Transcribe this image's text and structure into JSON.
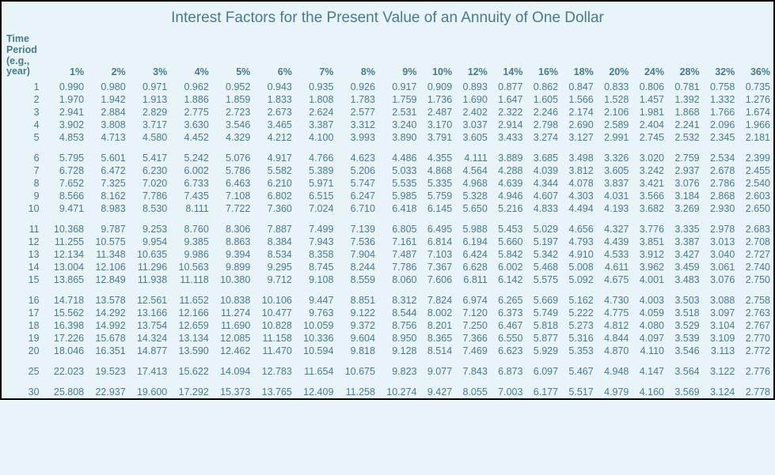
{
  "title": "Interest Factors for the Present Value of an Annuity of One Dollar",
  "row_header_lines": [
    "Time",
    "Period",
    "(e.g.,",
    "year)"
  ],
  "rates": [
    "1%",
    "2%",
    "3%",
    "4%",
    "5%",
    "6%",
    "7%",
    "8%",
    "9%",
    "10%",
    "12%",
    "14%",
    "16%",
    "18%",
    "20%",
    "24%",
    "28%",
    "32%",
    "36%"
  ],
  "groups": [
    {
      "rows": [
        {
          "p": "1",
          "v": [
            "0.990",
            "0.980",
            "0.971",
            "0.962",
            "0.952",
            "0.943",
            "0.935",
            "0.926",
            "0.917",
            "0.909",
            "0.893",
            "0.877",
            "0.862",
            "0.847",
            "0.833",
            "0.806",
            "0.781",
            "0.758",
            "0.735"
          ]
        },
        {
          "p": "2",
          "v": [
            "1.970",
            "1.942",
            "1.913",
            "1.886",
            "1.859",
            "1.833",
            "1.808",
            "1.783",
            "1.759",
            "1.736",
            "1.690",
            "1.647",
            "1.605",
            "1.566",
            "1.528",
            "1.457",
            "1.392",
            "1.332",
            "1.276"
          ]
        },
        {
          "p": "3",
          "v": [
            "2.941",
            "2.884",
            "2.829",
            "2.775",
            "2.723",
            "2.673",
            "2.624",
            "2.577",
            "2.531",
            "2.487",
            "2.402",
            "2.322",
            "2.246",
            "2.174",
            "2.106",
            "1.981",
            "1.868",
            "1.766",
            "1.674"
          ]
        },
        {
          "p": "4",
          "v": [
            "3.902",
            "3.808",
            "3.717",
            "3.630",
            "3.546",
            "3.465",
            "3.387",
            "3.312",
            "3.240",
            "3.170",
            "3.037",
            "2.914",
            "2.798",
            "2.690",
            "2.589",
            "2.404",
            "2.241",
            "2.096",
            "1.966"
          ]
        },
        {
          "p": "5",
          "v": [
            "4.853",
            "4.713",
            "4.580",
            "4.452",
            "4.329",
            "4.212",
            "4.100",
            "3.993",
            "3.890",
            "3.791",
            "3.605",
            "3.433",
            "3.274",
            "3.127",
            "2.991",
            "2.745",
            "2.532",
            "2.345",
            "2.181"
          ]
        }
      ]
    },
    {
      "rows": [
        {
          "p": "6",
          "v": [
            "5.795",
            "5.601",
            "5.417",
            "5.242",
            "5.076",
            "4.917",
            "4.766",
            "4.623",
            "4.486",
            "4.355",
            "4.111",
            "3.889",
            "3.685",
            "3.498",
            "3.326",
            "3.020",
            "2.759",
            "2.534",
            "2.399"
          ]
        },
        {
          "p": "7",
          "v": [
            "6.728",
            "6.472",
            "6.230",
            "6.002",
            "5.786",
            "5.582",
            "5.389",
            "5.206",
            "5.033",
            "4.868",
            "4.564",
            "4.288",
            "4.039",
            "3.812",
            "3.605",
            "3.242",
            "2.937",
            "2.678",
            "2.455"
          ]
        },
        {
          "p": "8",
          "v": [
            "7.652",
            "7.325",
            "7.020",
            "6.733",
            "6.463",
            "6.210",
            "5.971",
            "5.747",
            "5.535",
            "5.335",
            "4.968",
            "4.639",
            "4.344",
            "4.078",
            "3.837",
            "3.421",
            "3.076",
            "2.786",
            "2.540"
          ]
        },
        {
          "p": "9",
          "v": [
            "8.566",
            "8.162",
            "7.786",
            "7.435",
            "7.108",
            "6.802",
            "6.515",
            "6.247",
            "5.985",
            "5.759",
            "5.328",
            "4.946",
            "4.607",
            "4.303",
            "4.031",
            "3.566",
            "3.184",
            "2.868",
            "2.603"
          ]
        },
        {
          "p": "10",
          "v": [
            "9.471",
            "8.983",
            "8.530",
            "8.111",
            "7.722",
            "7.360",
            "7.024",
            "6.710",
            "6.418",
            "6.145",
            "5.650",
            "5.216",
            "4.833",
            "4.494",
            "4.193",
            "3.682",
            "3.269",
            "2.930",
            "2.650"
          ]
        }
      ]
    },
    {
      "rows": [
        {
          "p": "11",
          "v": [
            "10.368",
            "9.787",
            "9.253",
            "8.760",
            "8.306",
            "7.887",
            "7.499",
            "7.139",
            "6.805",
            "6.495",
            "5.988",
            "5.453",
            "5.029",
            "4.656",
            "4.327",
            "3.776",
            "3.335",
            "2.978",
            "2.683"
          ]
        },
        {
          "p": "12",
          "v": [
            "11.255",
            "10.575",
            "9.954",
            "9.385",
            "8.863",
            "8.384",
            "7.943",
            "7.536",
            "7.161",
            "6.814",
            "6.194",
            "5.660",
            "5.197",
            "4.793",
            "4.439",
            "3.851",
            "3.387",
            "3.013",
            "2.708"
          ]
        },
        {
          "p": "13",
          "v": [
            "12.134",
            "11.348",
            "10.635",
            "9.986",
            "9.394",
            "8.534",
            "8.358",
            "7.904",
            "7.487",
            "7.103",
            "6.424",
            "5.842",
            "5.342",
            "4.910",
            "4.533",
            "3.912",
            "3.427",
            "3.040",
            "2.727"
          ]
        },
        {
          "p": "14",
          "v": [
            "13.004",
            "12.106",
            "11.296",
            "10.563",
            "9.899",
            "9.295",
            "8.745",
            "8.244",
            "7.786",
            "7.367",
            "6.628",
            "6.002",
            "5.468",
            "5.008",
            "4.611",
            "3.962",
            "3.459",
            "3.061",
            "2.740"
          ]
        },
        {
          "p": "15",
          "v": [
            "13.865",
            "12.849",
            "11.938",
            "11.118",
            "10.380",
            "9.712",
            "9.108",
            "8.559",
            "8.060",
            "7.606",
            "6.811",
            "6.142",
            "5.575",
            "5.092",
            "4.675",
            "4.001",
            "3.483",
            "3.076",
            "2.750"
          ]
        }
      ]
    },
    {
      "rows": [
        {
          "p": "16",
          "v": [
            "14.718",
            "13.578",
            "12.561",
            "11.652",
            "10.838",
            "10.106",
            "9.447",
            "8.851",
            "8.312",
            "7.824",
            "6.974",
            "6.265",
            "5.669",
            "5.162",
            "4.730",
            "4.003",
            "3.503",
            "3.088",
            "2.758"
          ]
        },
        {
          "p": "17",
          "v": [
            "15.562",
            "14.292",
            "13.166",
            "12.166",
            "11.274",
            "10.477",
            "9.763",
            "9.122",
            "8.544",
            "8.002",
            "7.120",
            "6.373",
            "5.749",
            "5.222",
            "4.775",
            "4.059",
            "3.518",
            "3.097",
            "2.763"
          ]
        },
        {
          "p": "18",
          "v": [
            "16.398",
            "14.992",
            "13.754",
            "12.659",
            "11.690",
            "10.828",
            "10.059",
            "9.372",
            "8.756",
            "8.201",
            "7.250",
            "6.467",
            "5.818",
            "5.273",
            "4.812",
            "4.080",
            "3.529",
            "3.104",
            "2.767"
          ]
        },
        {
          "p": "19",
          "v": [
            "17.226",
            "15.678",
            "14.324",
            "13.134",
            "12.085",
            "11.158",
            "10.336",
            "9.604",
            "8.950",
            "8.365",
            "7.366",
            "6.550",
            "5.877",
            "5.316",
            "4.844",
            "4.097",
            "3.539",
            "3.109",
            "2.770"
          ]
        },
        {
          "p": "20",
          "v": [
            "18.046",
            "16.351",
            "14.877",
            "13.590",
            "12.462",
            "11.470",
            "10.594",
            "9.818",
            "9.128",
            "8.514",
            "7.469",
            "6.623",
            "5.929",
            "5.353",
            "4.870",
            "4.110",
            "3.546",
            "3.113",
            "2.772"
          ]
        }
      ]
    },
    {
      "rows": [
        {
          "p": "25",
          "v": [
            "22.023",
            "19.523",
            "17.413",
            "15.622",
            "14.094",
            "12.783",
            "11.654",
            "10.675",
            "9.823",
            "9.077",
            "7.843",
            "6.873",
            "6.097",
            "5.467",
            "4.948",
            "4.147",
            "3.564",
            "3.122",
            "2.776"
          ]
        }
      ]
    },
    {
      "rows": [
        {
          "p": "30",
          "v": [
            "25.808",
            "22.937",
            "19.600",
            "17.292",
            "15.373",
            "13.765",
            "12.409",
            "11.258",
            "10.274",
            "9.427",
            "8.055",
            "7.003",
            "6.177",
            "5.517",
            "4.979",
            "4.160",
            "3.569",
            "3.124",
            "2.778"
          ]
        }
      ]
    }
  ],
  "colors": {
    "background": "#e8f4f8",
    "text": "#4a7a8c",
    "border": "#000000"
  }
}
